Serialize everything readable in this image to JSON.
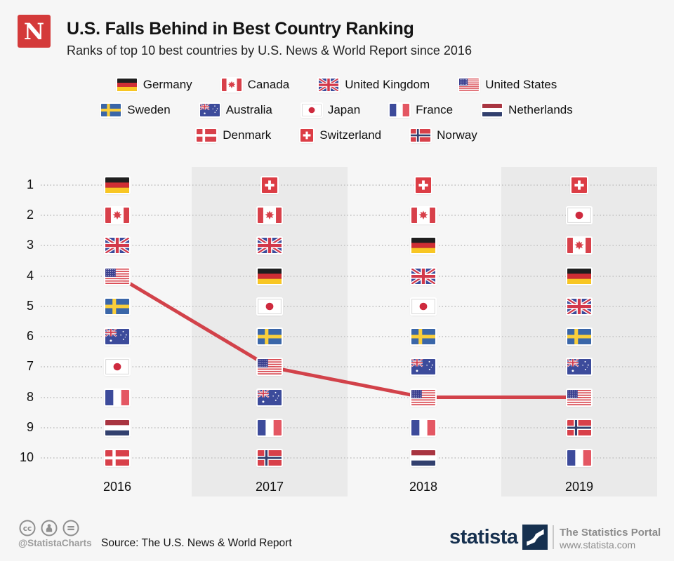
{
  "page": {
    "background": "#f6f6f6",
    "band_color": "#eaeaea",
    "accent_red": "#d2424a"
  },
  "header": {
    "logo_letter": "N",
    "logo_color": "#d43a3a",
    "title": "U.S. Falls Behind in Best Country Ranking",
    "subtitle": "Ranks of top 10 best countries by U.S. News & World Report since 2016"
  },
  "legend": {
    "rows": [
      [
        {
          "id": "germany",
          "label": "Germany"
        },
        {
          "id": "canada",
          "label": "Canada"
        },
        {
          "id": "united_kingdom",
          "label": "United Kingdom"
        },
        {
          "id": "united_states",
          "label": "United States"
        }
      ],
      [
        {
          "id": "sweden",
          "label": "Sweden"
        },
        {
          "id": "australia",
          "label": "Australia"
        },
        {
          "id": "japan",
          "label": "Japan"
        },
        {
          "id": "france",
          "label": "France"
        },
        {
          "id": "netherlands",
          "label": "Netherlands"
        }
      ],
      [
        {
          "id": "denmark",
          "label": "Denmark"
        },
        {
          "id": "switzerland",
          "label": "Switzerland"
        },
        {
          "id": "norway",
          "label": "Norway"
        }
      ]
    ]
  },
  "chart_data": {
    "type": "table",
    "subtype": "flag-bump-ranking",
    "years": [
      "2016",
      "2017",
      "2018",
      "2019"
    ],
    "rank_labels": [
      "1",
      "2",
      "3",
      "4",
      "5",
      "6",
      "7",
      "8",
      "9",
      "10"
    ],
    "rankings": {
      "2016": [
        "germany",
        "canada",
        "united_kingdom",
        "united_states",
        "sweden",
        "australia",
        "japan",
        "france",
        "netherlands",
        "denmark"
      ],
      "2017": [
        "switzerland",
        "canada",
        "united_kingdom",
        "germany",
        "japan",
        "sweden",
        "united_states",
        "australia",
        "france",
        "norway"
      ],
      "2018": [
        "switzerland",
        "canada",
        "germany",
        "united_kingdom",
        "japan",
        "sweden",
        "australia",
        "united_states",
        "france",
        "netherlands"
      ],
      "2019": [
        "switzerland",
        "japan",
        "canada",
        "germany",
        "united_kingdom",
        "sweden",
        "australia",
        "united_states",
        "norway",
        "france"
      ]
    },
    "highlight": {
      "country": "united_states",
      "ranks_by_year": [
        4,
        7,
        8,
        8
      ],
      "line_color": "#d2424a"
    },
    "shaded_columns": [
      "2017",
      "2019"
    ],
    "grid": "dotted-horizontal",
    "legend_position": "top"
  },
  "footer": {
    "license_icons": [
      "cc-icon",
      "attribution-icon",
      "equals-icon"
    ],
    "handle": "@StatistaCharts",
    "source": "Source: The U.S. News & World Report",
    "brand": "statista",
    "tagline": "The Statistics Portal",
    "url": "www.statista.com",
    "brand_color": "#16304f"
  }
}
